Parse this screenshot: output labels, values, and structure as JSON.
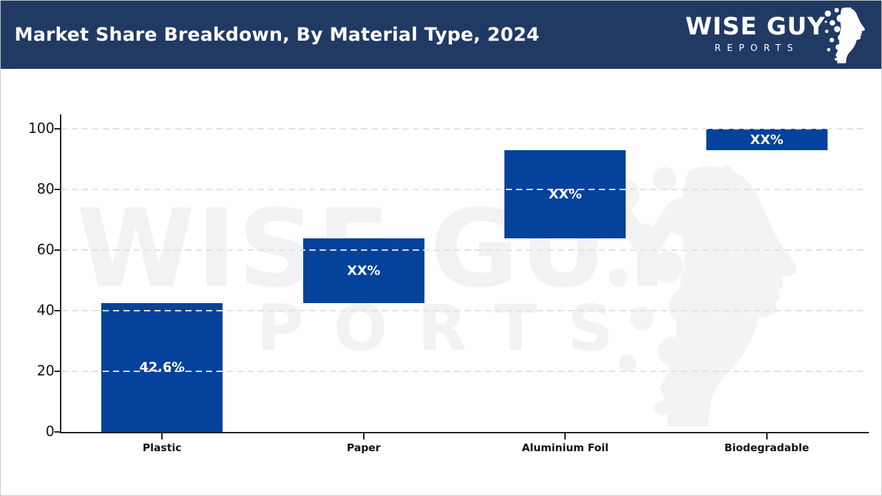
{
  "header": {
    "title": "Market Share Breakdown, By Material Type, 2024",
    "logo": {
      "line1": "WISE GUY",
      "line2": "REPORTS"
    }
  },
  "watermark": {
    "line1": "WISE GUY",
    "line2": "REPORTS"
  },
  "colors": {
    "header_navy": "#213a64",
    "bar_blue": "#05429b",
    "grid_gray": "#e1e1e1",
    "watermark_gray": "#f2f2f4",
    "bar_label_white": "#ffffff"
  },
  "chart_data": {
    "type": "bar",
    "subtype": "stacked-waterfall",
    "title": "Market Share Breakdown, By Material Type, 2024",
    "categories": [
      "Plastic",
      "Paper",
      "Aluminium Foil",
      "Biodegradable"
    ],
    "segments": [
      {
        "category": "Plastic",
        "start": 0,
        "end": 42.6,
        "label": "42.6%"
      },
      {
        "category": "Paper",
        "start": 42.6,
        "end": 63.9,
        "label": "XX%"
      },
      {
        "category": "Aluminium Foil",
        "start": 63.9,
        "end": 92.9,
        "label": "XX%"
      },
      {
        "category": "Biodegradable",
        "start": 92.9,
        "end": 100,
        "label": "XX%"
      }
    ],
    "xlabel": "",
    "ylabel": "",
    "yticks": [
      0,
      20,
      40,
      60,
      80,
      100
    ],
    "ylim": [
      0,
      105
    ],
    "grid": "horizontal-dashed",
    "legend": "none",
    "bar_color": "#05429b",
    "label_color": "#ffffff"
  }
}
